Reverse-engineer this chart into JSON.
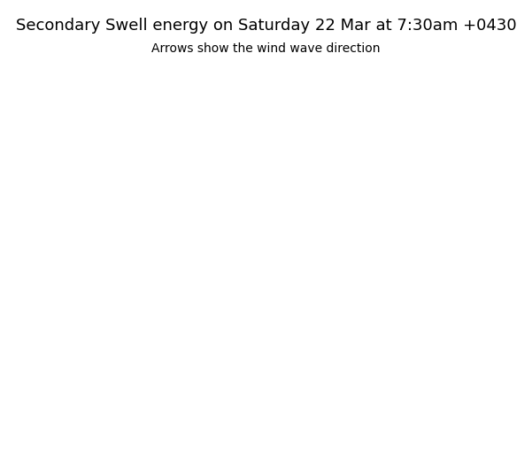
{
  "title": "Secondary Swell energy on Saturday 22 Mar at 7:30am +0430",
  "subtitle": "Arrows show the wind wave direction",
  "title_fontsize": 13,
  "subtitle_fontsize": 10,
  "extent": [
    42,
    80,
    22,
    48
  ],
  "figsize": [
    6.01,
    5.1
  ],
  "dpi": 100,
  "background_color": "#ffffff",
  "ocean_color": "#000000",
  "land_color": "#aaaaaa",
  "border_color": "#000000",
  "border_linewidth": 0.7,
  "coastline_linewidth": 0.7
}
